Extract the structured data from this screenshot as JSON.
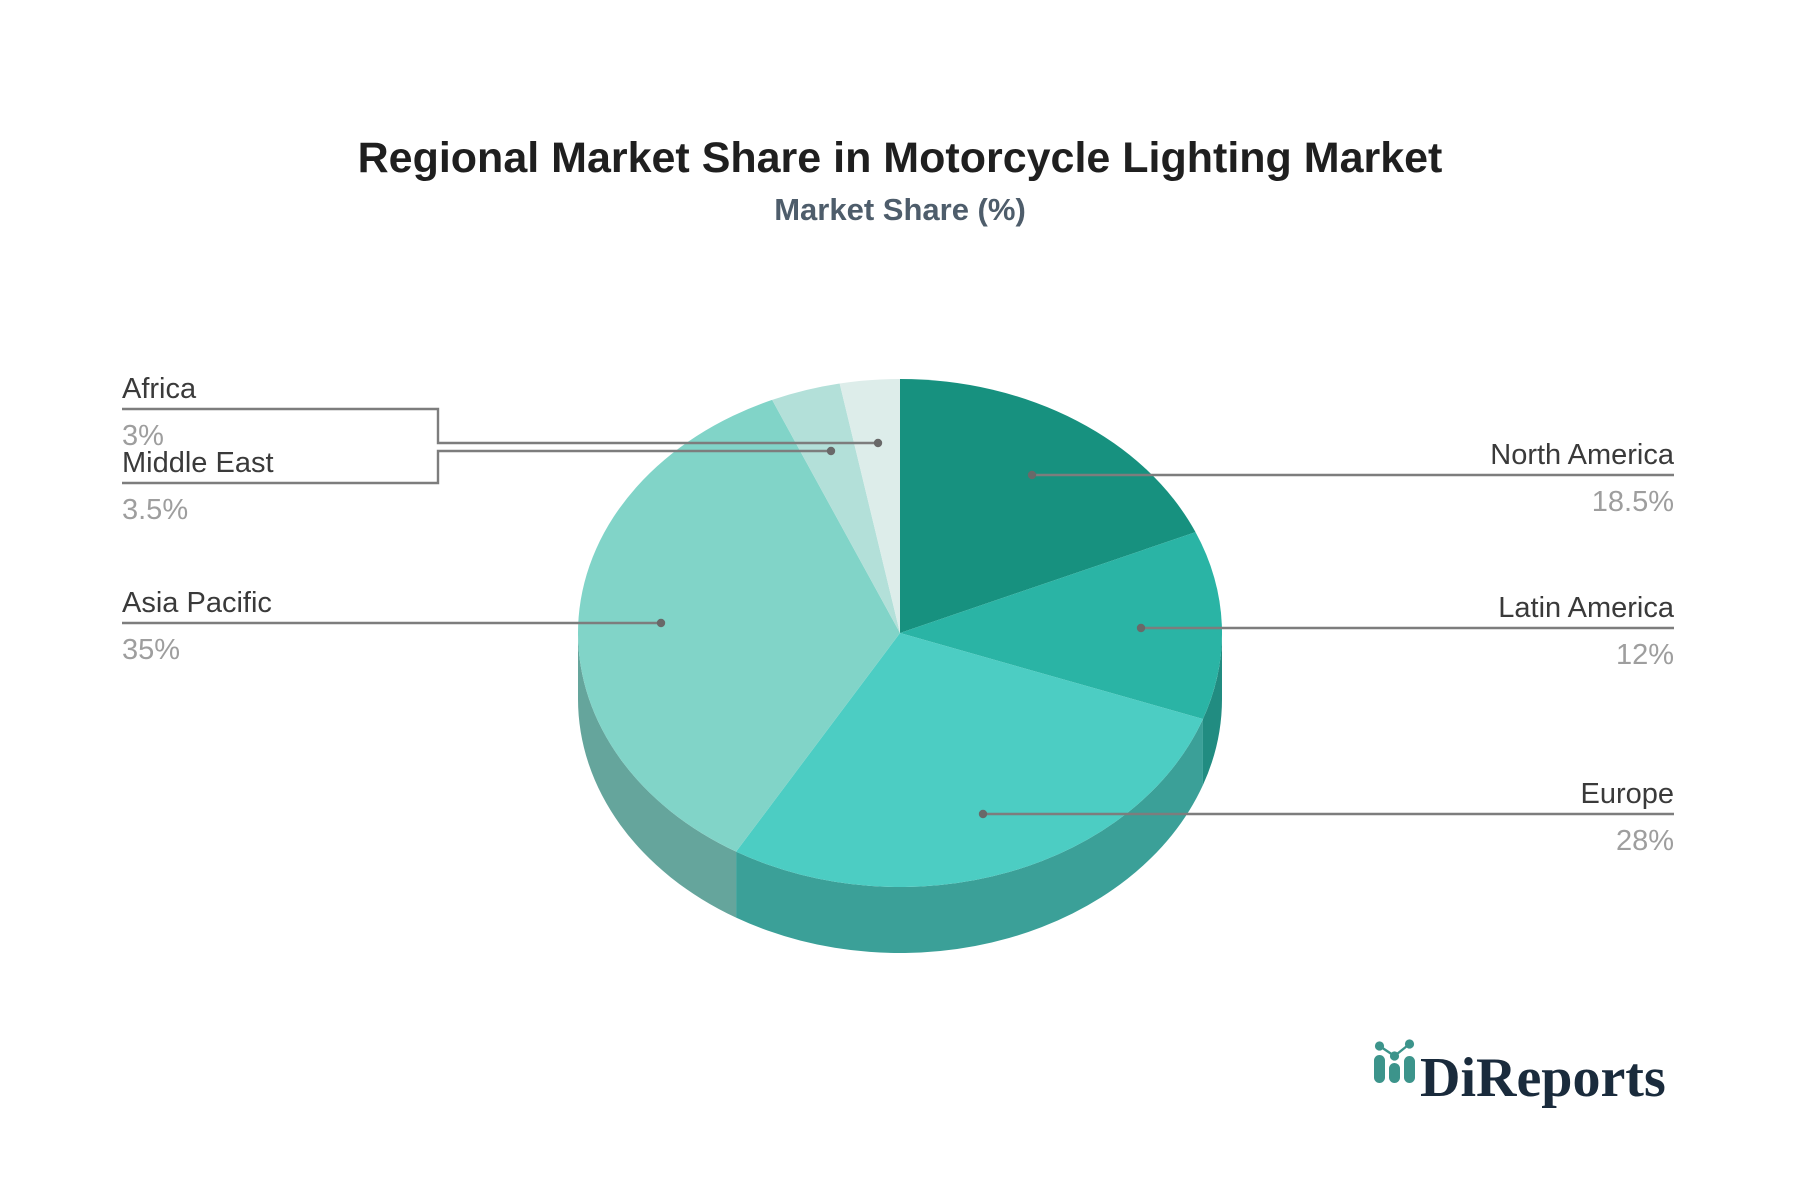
{
  "title": "Regional Market Share in Motorcycle Lighting Market",
  "subtitle": "Market Share (%)",
  "logo": {
    "text": "DiReports"
  },
  "chart_data": {
    "type": "pie",
    "title": "Regional Market Share in Motorcycle Lighting Market",
    "subtitle": "Market Share (%)",
    "unit": "%",
    "effect_3d": true,
    "direction": "clockwise",
    "start_angle_deg": 0,
    "labels_position": "outside",
    "legend": "none",
    "slices": [
      {
        "label": "North America",
        "value": 18.5,
        "display": "18.5%",
        "color": "#17917F"
      },
      {
        "label": "Latin America",
        "value": 12,
        "display": "12%",
        "color": "#2AB4A5"
      },
      {
        "label": "Europe",
        "value": 28,
        "display": "28%",
        "color": "#4CCDC3"
      },
      {
        "label": "Asia Pacific",
        "value": 35,
        "display": "35%",
        "color": "#81D4C8"
      },
      {
        "label": "Middle East",
        "value": 3.5,
        "display": "3.5%",
        "color": "#B3E0D9"
      },
      {
        "label": "Africa",
        "value": 3,
        "display": "3%",
        "color": "#DDEDEA"
      }
    ]
  }
}
